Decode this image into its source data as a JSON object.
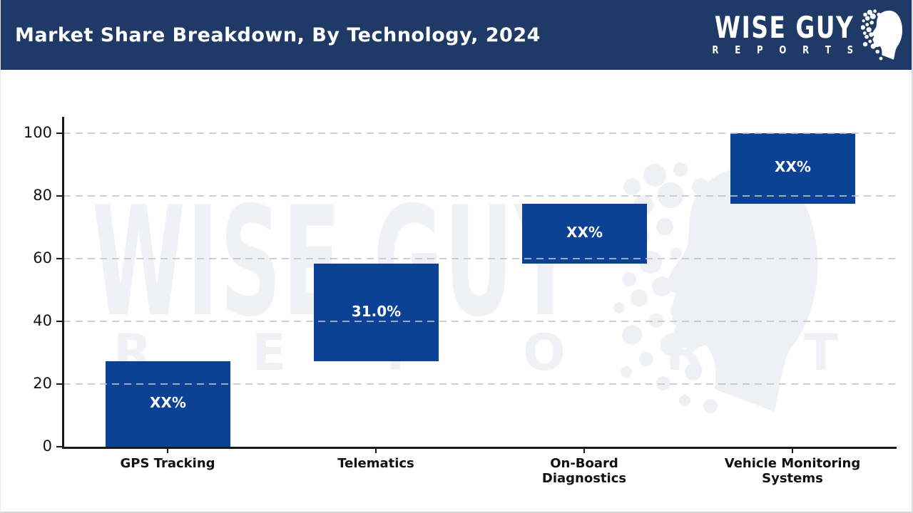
{
  "header": {
    "title": "Market Share Breakdown, By Technology, 2024",
    "bg_color": "#1f3a67",
    "logo": {
      "brand_line1": "WISE GUY",
      "brand_line2": "REPORTS",
      "icon": "head-dots-icon"
    }
  },
  "watermark": {
    "line1": "WISE GUY",
    "line2": "REPORTS",
    "icon": "head-dots-watermark",
    "color": "#f0f1f4"
  },
  "chart_data": {
    "type": "bar",
    "variant": "waterfall",
    "title": "Market Share Breakdown, By Technology, 2024",
    "categories": [
      "GPS Tracking",
      "Telematics",
      "On-Board Diagnostics",
      "Vehicle Monitoring Systems"
    ],
    "category_label_lines": [
      [
        "GPS Tracking"
      ],
      [
        "Telematics"
      ],
      [
        "On-Board",
        "Diagnostics"
      ],
      [
        "Vehicle Monitoring",
        "Systems"
      ]
    ],
    "segments": [
      {
        "category": "GPS Tracking",
        "start": 0,
        "end": 27.3,
        "label": "XX%"
      },
      {
        "category": "Telematics",
        "start": 27.3,
        "end": 58.3,
        "label": "31.0%",
        "value_pct": 31.0
      },
      {
        "category": "On-Board Diagnostics",
        "start": 58.3,
        "end": 77.6,
        "label": "XX%"
      },
      {
        "category": "Vehicle Monitoring Systems",
        "start": 77.6,
        "end": 100,
        "label": "XX%"
      }
    ],
    "ylim": [
      0,
      100
    ],
    "yticks": [
      0,
      20,
      40,
      60,
      80,
      100
    ],
    "grid": {
      "horizontal": true,
      "style": "dashed"
    },
    "legend": "none",
    "colors": {
      "bar": "#0b4296",
      "bar_label": "#ffffff",
      "axis": "#1a1a1a",
      "grid": "#c9c9c9",
      "header_bg": "#1f3a67",
      "header_text": "#ffffff",
      "watermark": "#f0f1f4"
    }
  }
}
